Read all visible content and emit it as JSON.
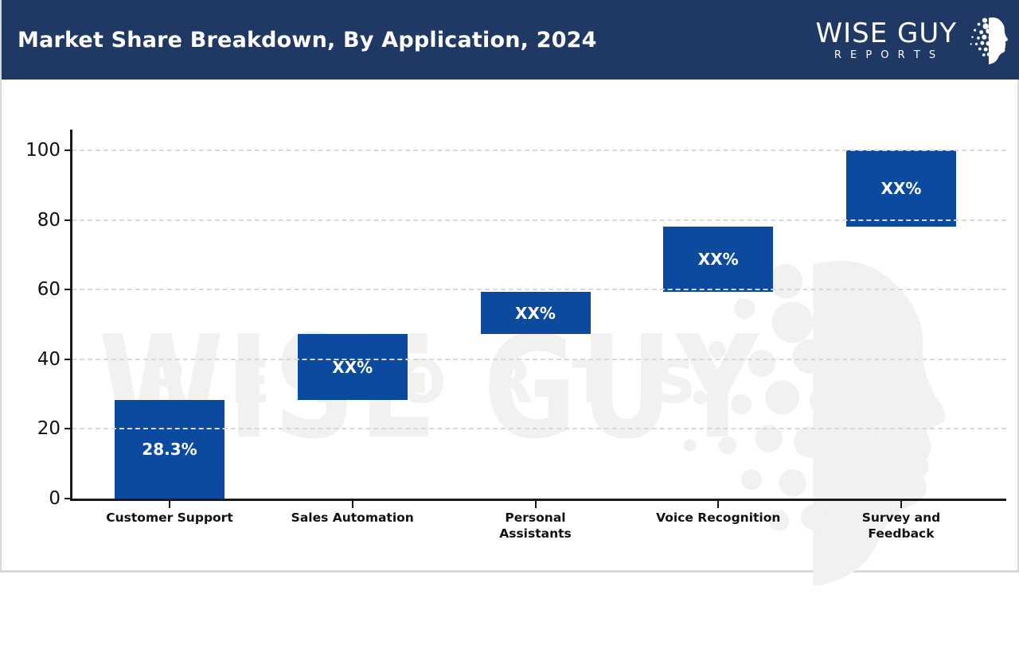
{
  "header": {
    "title": "Market Share Breakdown, By Application, 2024",
    "logo_line1": "WISE GUY",
    "logo_line2": "R E P O R T S"
  },
  "watermark": {
    "line1": "WISE GUY",
    "line2": "REPORTS"
  },
  "chart_data": {
    "type": "bar",
    "variant": "waterfall",
    "title": "Market Share Breakdown, By Application, 2024",
    "categories": [
      "Customer Support",
      "Sales Automation",
      "Personal\nAssistants",
      "Voice Recognition",
      "Survey and\nFeedback"
    ],
    "segments": [
      {
        "category": "Customer Support",
        "start": 0,
        "end": 28.3,
        "label": "28.3%"
      },
      {
        "category": "Sales Automation",
        "start": 28.3,
        "end": 47.2,
        "label": "XX%"
      },
      {
        "category": "Personal Assistants",
        "start": 47.2,
        "end": 59.4,
        "label": "XX%"
      },
      {
        "category": "Voice Recognition",
        "start": 59.4,
        "end": 78.1,
        "label": "XX%"
      },
      {
        "category": "Survey and Feedback",
        "start": 78.1,
        "end": 100,
        "label": "XX%"
      }
    ],
    "ylim": [
      0,
      100
    ],
    "yticks": [
      "0",
      "20",
      "40",
      "60",
      "80",
      "100"
    ],
    "grid": "horizontal-dashed",
    "legend": "none",
    "colors": {
      "bar": "#0b4a9e",
      "bar_label": "#ffffff",
      "grid": "#d9d9d9",
      "axis": "#1a1a1a",
      "header_bg": "#1f3864",
      "watermark": "#f1f1f2"
    }
  }
}
